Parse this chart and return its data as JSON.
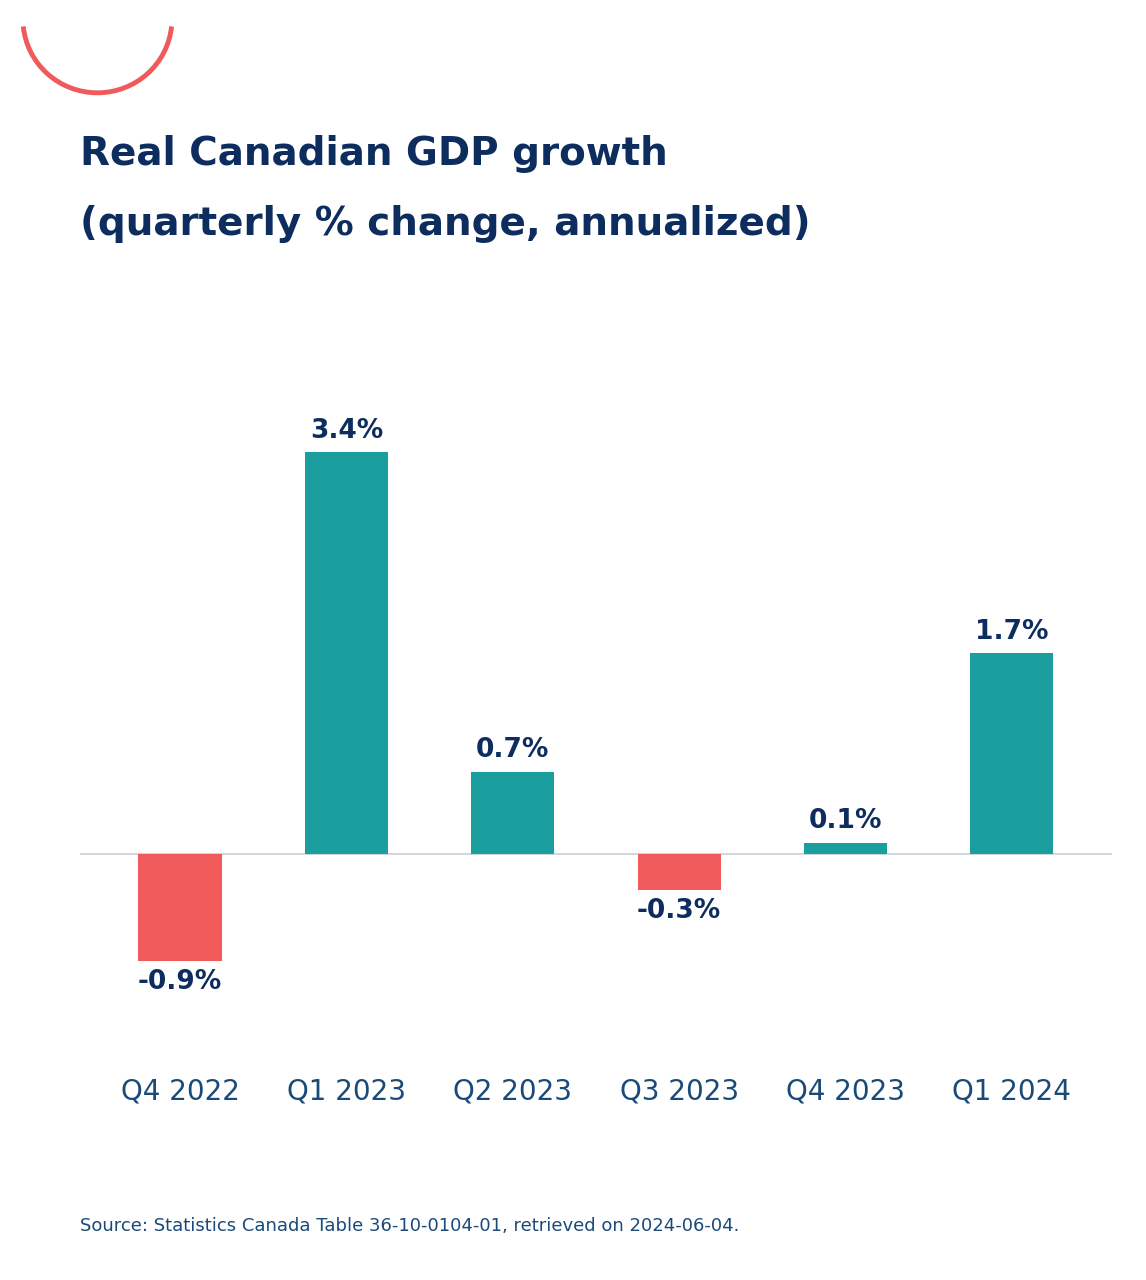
{
  "title_line1": "Real Canadian GDP growth",
  "title_line2": "(quarterly % change, annualized)",
  "categories": [
    "Q4 2022",
    "Q1 2023",
    "Q2 2023",
    "Q3 2023",
    "Q4 2023",
    "Q1 2024"
  ],
  "values": [
    -0.9,
    3.4,
    0.7,
    -0.3,
    0.1,
    1.7
  ],
  "bar_color_positive": "#1a9e9e",
  "bar_color_negative": "#f05a5a",
  "title_color": "#0d2d5e",
  "label_color": "#0d2d5e",
  "source_text": "Source: Statistics Canada Table 36-10-0104-01, retrieved on 2024-06-04.",
  "source_color": "#1a4a7a",
  "xtick_color": "#1a4a7a",
  "background_color": "#ffffff",
  "bar_width": 0.5,
  "arc_color": "#f05a5a",
  "zeroline_color": "#c8d0d8"
}
